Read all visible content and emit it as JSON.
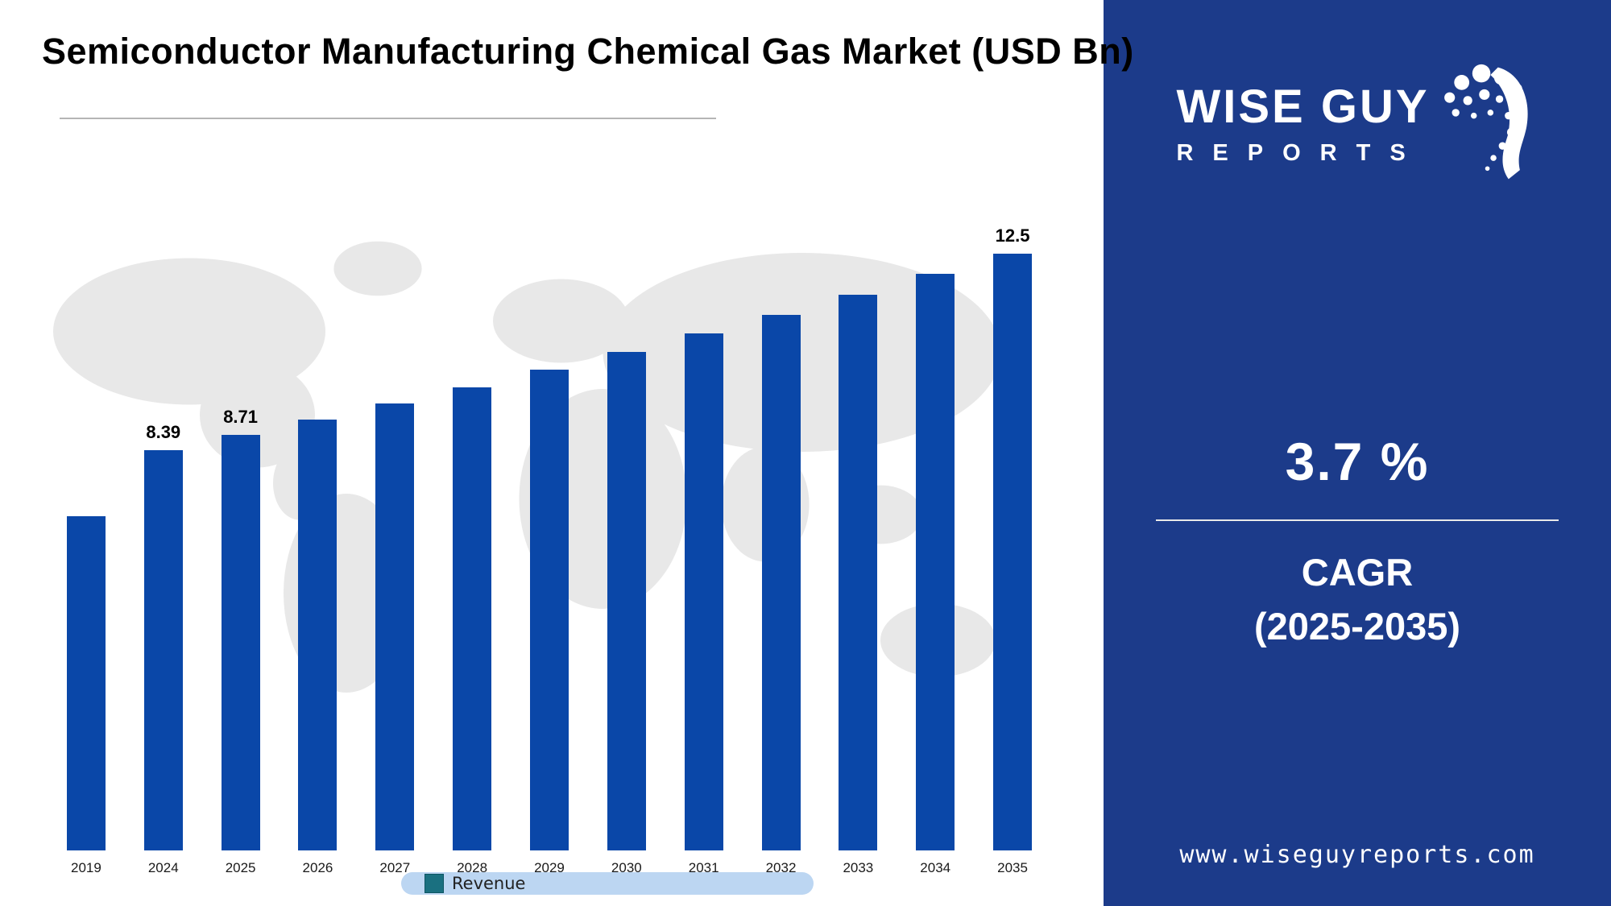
{
  "title": "Semiconductor Manufacturing Chemical Gas Market (USD Bn)",
  "chart_data": {
    "type": "bar",
    "title": "Semiconductor Manufacturing Chemical Gas Market (USD Bn)",
    "categories": [
      "2019",
      "2024",
      "2025",
      "2026",
      "2027",
      "2028",
      "2029",
      "2030",
      "2031",
      "2032",
      "2033",
      "2034",
      "2035"
    ],
    "values": [
      7.0,
      8.39,
      8.71,
      9.03,
      9.37,
      9.71,
      10.07,
      10.45,
      10.83,
      11.23,
      11.65,
      12.08,
      12.5
    ],
    "point_labels": [
      "",
      "8.39",
      "8.71",
      "",
      "",
      "",
      "",
      "",
      "",
      "",
      "",
      "",
      "12.5"
    ],
    "xlabel": "",
    "ylabel": "",
    "ylim": [
      0,
      13.5
    ],
    "grid": false,
    "legend": [
      "Revenue"
    ],
    "legend_position": "bottom",
    "bar_color": "#0a47a8",
    "legend_swatch_color": "#1a7080"
  },
  "panel": {
    "logo_line1": "WISE GUY",
    "logo_line2": "REPORTS",
    "cagr_value": "3.7 %",
    "cagr_label": "CAGR",
    "cagr_range": "(2025-2035)",
    "website": "www.wiseguyreports.com",
    "bg_color": "#1c3b8a"
  }
}
